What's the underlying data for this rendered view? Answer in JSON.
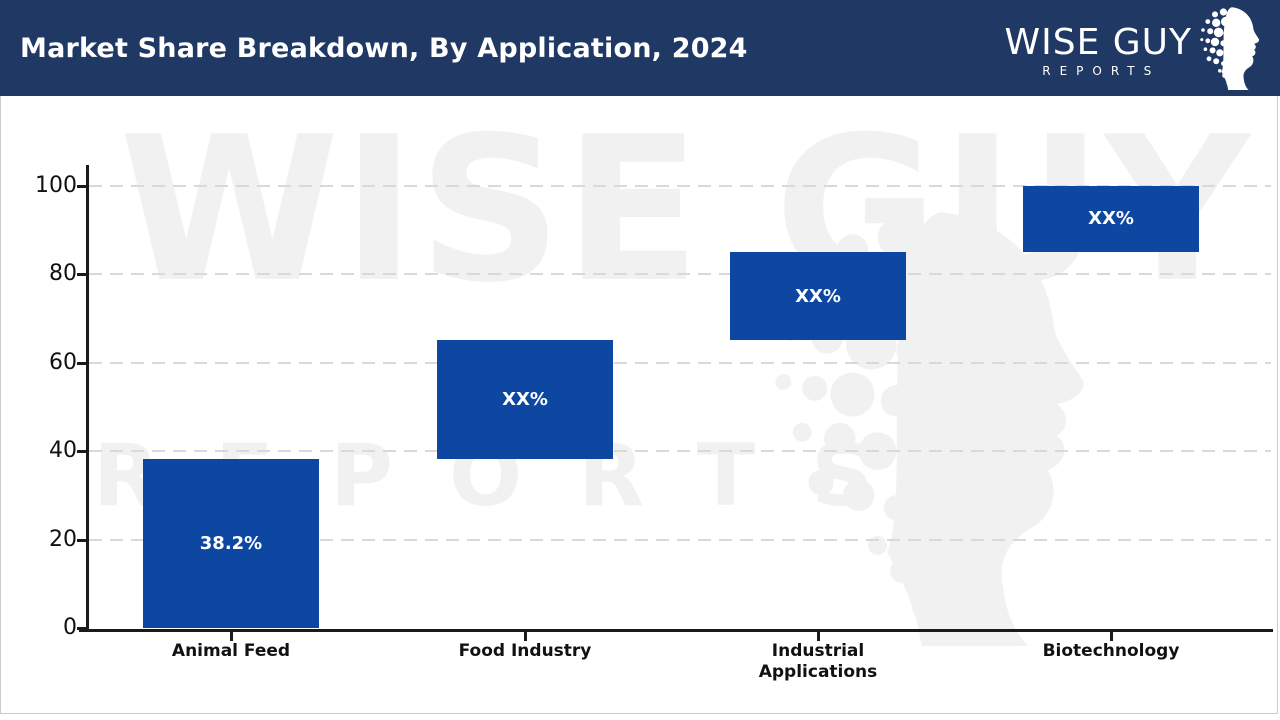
{
  "header": {
    "title": "Market Share Breakdown, By Application, 2024",
    "logo_line1": "WISE GUY",
    "logo_line2": "REPORTS"
  },
  "watermark": {
    "line1": "WISE GUY",
    "line2": "REPORTS"
  },
  "colors": {
    "header_bg": "#1f3864",
    "bar_fill": "#0d47a1",
    "bar_label": "#ffffff",
    "gridline": "#d9d9d9",
    "axis": "#1a1a1a",
    "watermark": "#f1f1f1",
    "border": "#cccccc"
  },
  "chart_data": {
    "type": "bar",
    "subtype": "floating-segment-steps",
    "title": "Market Share Breakdown, By Application, 2024",
    "categories": [
      "Animal Feed",
      "Food Industry",
      "Industrial Applications",
      "Biotechnology"
    ],
    "segments": [
      {
        "category": "Animal Feed",
        "start": 0,
        "end": 38.2,
        "value": 38.2,
        "label": "38.2%"
      },
      {
        "category": "Food Industry",
        "start": 38.2,
        "end": 65,
        "value": 26.8,
        "label": "XX%"
      },
      {
        "category": "Industrial Applications",
        "start": 65,
        "end": 85,
        "value": 20,
        "label": "XX%"
      },
      {
        "category": "Biotechnology",
        "start": 85,
        "end": 100,
        "value": 15,
        "label": "XX%"
      }
    ],
    "xlabel": "",
    "ylabel": "",
    "yticks": [
      0,
      20,
      40,
      60,
      80,
      100
    ],
    "ylim": [
      0,
      105
    ],
    "grid": "horizontal dashed",
    "legend": "none",
    "bar_label_color": "#ffffff",
    "bar_color": "#0d47a1"
  }
}
